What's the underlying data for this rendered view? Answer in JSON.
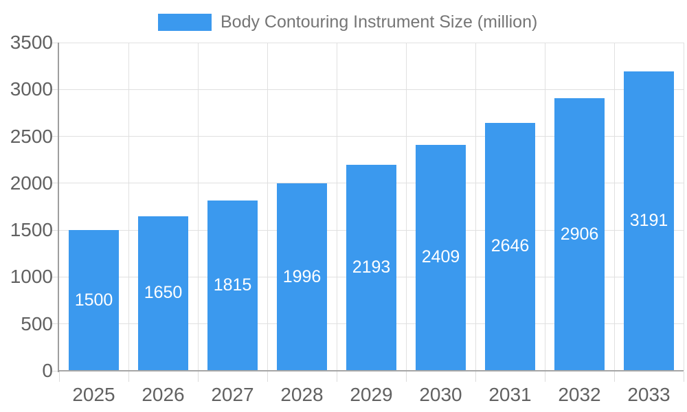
{
  "chart_data": {
    "type": "bar",
    "legend": "Body Contouring Instrument Size (million)",
    "legend_position": "top",
    "categories": [
      "2025",
      "2026",
      "2027",
      "2028",
      "2029",
      "2030",
      "2031",
      "2032",
      "2033"
    ],
    "series": [
      {
        "name": "Body Contouring Instrument Size (million)",
        "values": [
          1500,
          1650,
          1815,
          1996,
          2193,
          2409,
          2646,
          2906,
          3191
        ]
      }
    ],
    "value_labels_shown": true,
    "xlabel": "",
    "ylabel": "",
    "ylim": [
      0,
      3500
    ],
    "yticks": [
      0,
      500,
      1000,
      1500,
      2000,
      2500,
      3000,
      3500
    ],
    "grid": true,
    "colors": {
      "bar": "#3B99EE",
      "value_label": "#FFFFFF",
      "axis_text": "#616161",
      "legend_text": "#757575",
      "gridline": "#E0E0E0",
      "axis_line": "#9E9E9E"
    }
  }
}
